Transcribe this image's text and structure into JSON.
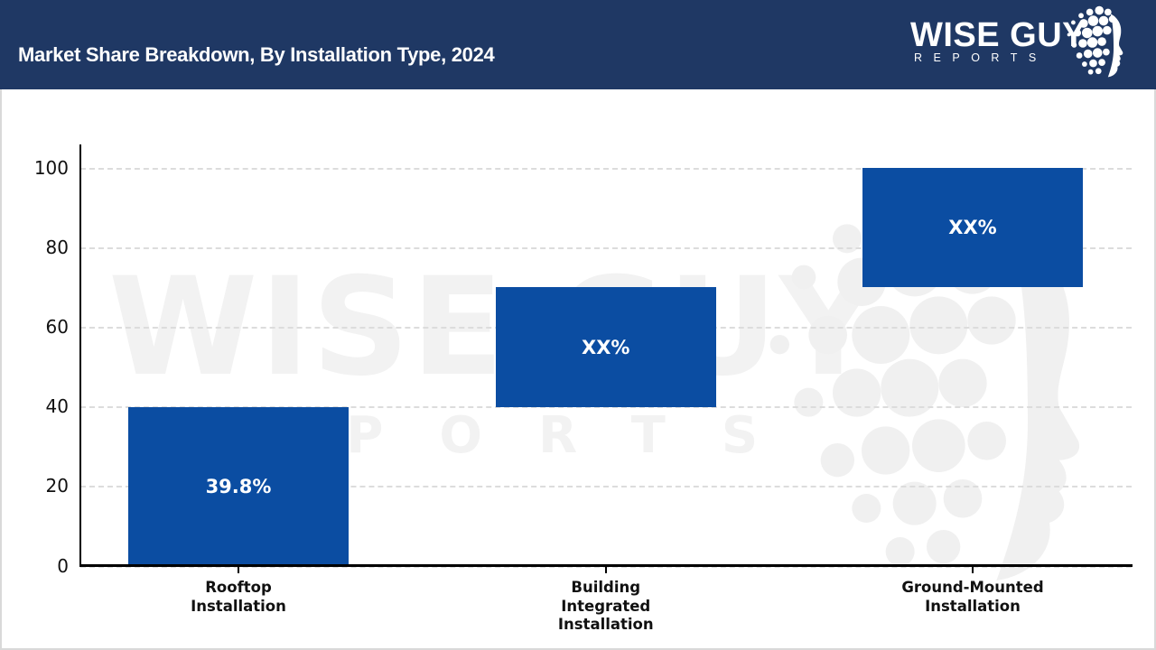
{
  "header": {
    "title": "Market Share Breakdown, By Installation Type, 2024",
    "logo": {
      "wordmark": "WISE GUY",
      "subtext": "REPORTS"
    }
  },
  "watermark": {
    "line1": "WISE GUY",
    "line2": "REPORTS"
  },
  "chart_data": {
    "type": "bar",
    "subtype": "floating-segment-bars",
    "title": "Market Share Breakdown, By Installation Type, 2024",
    "categories": [
      [
        "Rooftop",
        "Installation"
      ],
      [
        "Building",
        "Integrated",
        "Installation"
      ],
      [
        "Ground-Mounted",
        "Installation"
      ]
    ],
    "bars": [
      {
        "label": "39.8%",
        "start": 0,
        "end": 39.8
      },
      {
        "label": "XX%",
        "start": 39.8,
        "end": 70
      },
      {
        "label": "XX%",
        "start": 70,
        "end": 100
      }
    ],
    "yticks": [
      0,
      20,
      40,
      60,
      80,
      100
    ],
    "ylim": [
      0,
      106
    ],
    "xlabel": "",
    "ylabel": "",
    "grid": "horizontal-dashed",
    "legend": "none",
    "bar_color": "#0b4da2",
    "value_label_color": "#ffffff"
  },
  "colors": {
    "header_bg": "#1f3864",
    "bar": "#0b4da2",
    "gridline": "#dcdcdc",
    "axis": "#000000",
    "watermark": "#f2f2f2",
    "text": "#111111"
  }
}
